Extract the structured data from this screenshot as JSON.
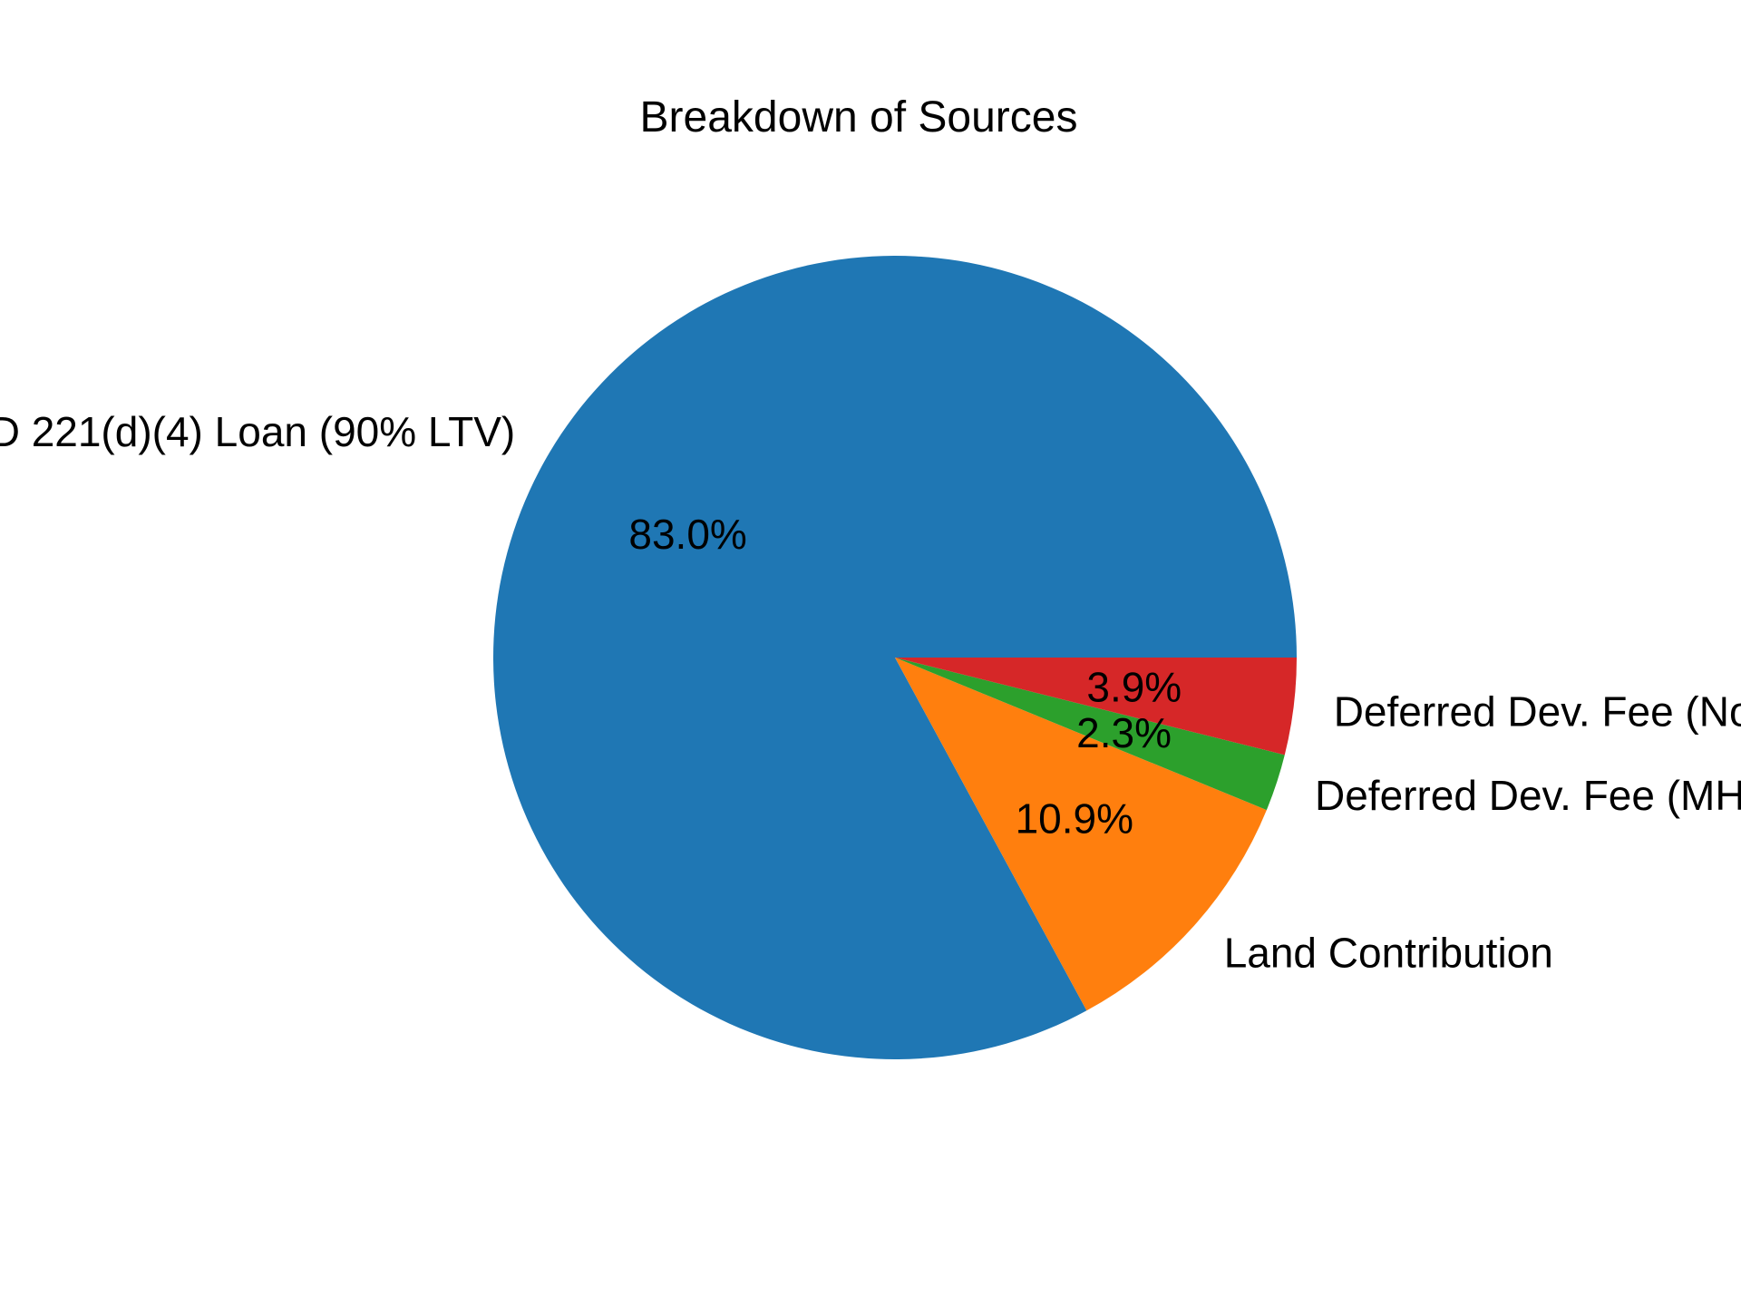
{
  "chart_data": {
    "type": "pie",
    "title": "Breakdown of Sources",
    "startangle": 0,
    "counterclock": true,
    "labeldistance": 1.1,
    "pctdistance": 0.6,
    "background_color": "#ffffff",
    "text_color": "#000000",
    "legend": "none",
    "slices": [
      {
        "label": "D 221(d)(4) Loan (90% LTV)",
        "value": 83.0,
        "pct_label": "83.0%",
        "color": "#1f77b4"
      },
      {
        "label": "Land Contribution",
        "value": 10.9,
        "pct_label": "10.9%",
        "color": "#ff7f0e"
      },
      {
        "label": "Deferred Dev. Fee (MH",
        "value": 2.3,
        "pct_label": "2.3%",
        "color": "#2ca02c"
      },
      {
        "label": "Deferred Dev. Fee (No",
        "value": 3.9,
        "pct_label": "3.9%",
        "color": "#d62728"
      }
    ]
  }
}
